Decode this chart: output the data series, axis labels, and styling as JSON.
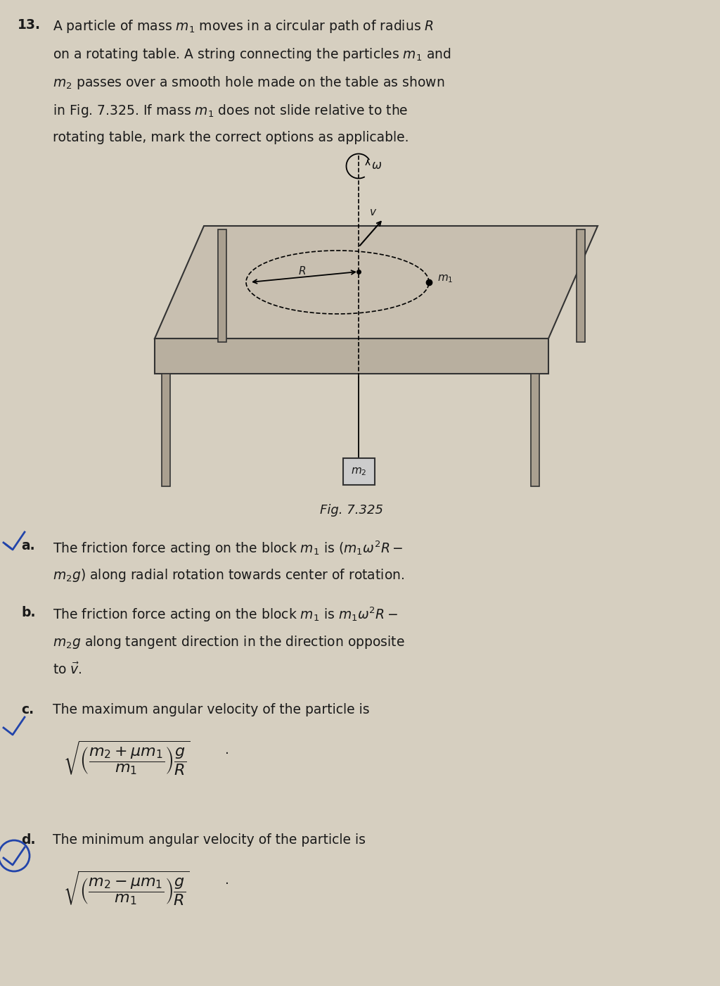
{
  "bg_color": "#d6cfc0",
  "text_color": "#1a1a1a",
  "title_number": "13.",
  "title_text_line1": "A particle of mass $m_1$ moves in a circular path of radius $R$",
  "title_text_line2": "on a rotating table. A string connecting the particles $m_1$ and",
  "title_text_line3": "$m_2$ passes over a smooth hole made on the table as shown",
  "title_text_line4": "in Fig. 7.325. If mass $m_1$ does not slide relative to the",
  "title_text_line5": "rotating table, mark the correct options as applicable.",
  "fig_caption": "Fig. 7.325",
  "option_a_line1": "The friction force acting on the block $m_1$ is $(m_1\\omega^2R -$",
  "option_a_line2": "$m_2g)$ along radial rotation towards center of rotation.",
  "option_b_line1": "The friction force acting on the block $m_1$ is $m_1\\omega^2R -$",
  "option_b_line2": "$m_2g$ along tangent direction in the direction opposite",
  "option_b_line3": "to $\\vec{v}$.",
  "option_c_line1": "The maximum angular velocity of the particle is",
  "option_d_line1": "The minimum angular velocity of the particle is"
}
